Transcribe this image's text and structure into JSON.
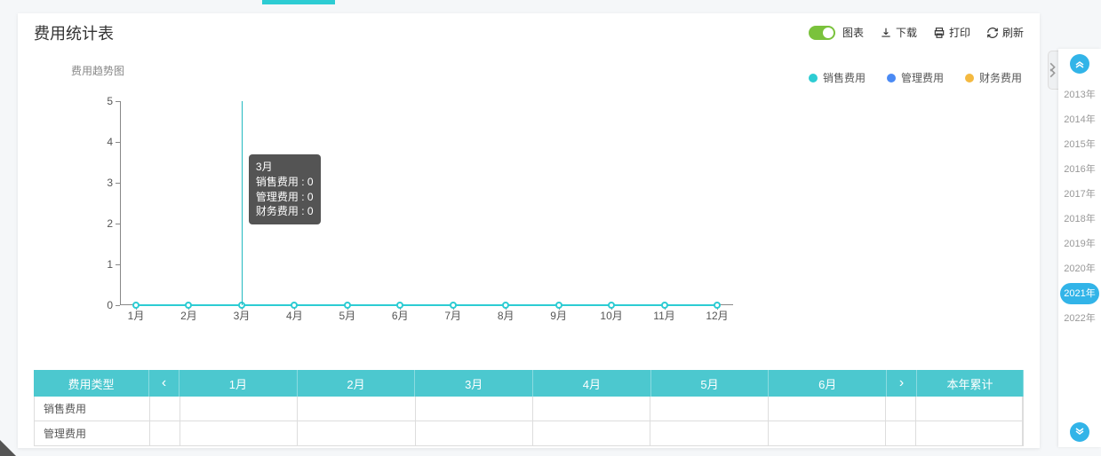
{
  "header": {
    "title": "费用统计表",
    "toggle_label": "图表",
    "download_label": "下载",
    "print_label": "打印",
    "refresh_label": "刷新"
  },
  "chart": {
    "subtitle": "费用趋势图",
    "type": "line",
    "legend": [
      {
        "label": "销售费用",
        "color": "#2dccd3"
      },
      {
        "label": "管理费用",
        "color": "#4a8af4"
      },
      {
        "label": "财务费用",
        "color": "#f4b940"
      }
    ],
    "x_labels": [
      "1月",
      "2月",
      "3月",
      "4月",
      "5月",
      "6月",
      "7月",
      "8月",
      "9月",
      "10月",
      "11月",
      "12月"
    ],
    "y_ticks": [
      0,
      1,
      2,
      3,
      4,
      5
    ],
    "ylim": [
      0,
      5
    ],
    "series": [
      {
        "name": "销售费用",
        "color": "#2dccd3",
        "values": [
          0,
          0,
          0,
          0,
          0,
          0,
          0,
          0,
          0,
          0,
          0,
          0
        ]
      },
      {
        "name": "管理费用",
        "color": "#4a8af4",
        "values": [
          0,
          0,
          0,
          0,
          0,
          0,
          0,
          0,
          0,
          0,
          0,
          0
        ]
      },
      {
        "name": "财务费用",
        "color": "#f4b940",
        "values": [
          0,
          0,
          0,
          0,
          0,
          0,
          0,
          0,
          0,
          0,
          0,
          0
        ]
      }
    ],
    "hover_index": 2,
    "hover_line_color": "#22b9c1",
    "tooltip": {
      "title": "3月",
      "rows": [
        {
          "label": "销售费用",
          "value": "0"
        },
        {
          "label": "管理费用",
          "value": "0"
        },
        {
          "label": "财务费用",
          "value": "0"
        }
      ],
      "bg": "rgba(60,60,60,0.88)"
    },
    "axis_color": "#888888",
    "label_color": "#555555",
    "marker_fill": "#ffffff",
    "plot_bg": "#ffffff"
  },
  "table": {
    "header_bg": "#4cc8cf",
    "row_border": "#dddddd",
    "type_header": "费用类型",
    "month_headers": [
      "1月",
      "2月",
      "3月",
      "4月",
      "5月",
      "6月"
    ],
    "total_header": "本年累计",
    "rows": [
      {
        "label": "销售费用",
        "cells": [
          "",
          "",
          "",
          "",
          "",
          ""
        ],
        "total": ""
      },
      {
        "label": "管理费用",
        "cells": [
          "",
          "",
          "",
          "",
          "",
          ""
        ],
        "total": ""
      }
    ]
  },
  "years": {
    "list": [
      "2013年",
      "2014年",
      "2015年",
      "2016年",
      "2017年",
      "2018年",
      "2019年",
      "2020年",
      "2021年",
      "2022年"
    ],
    "selected": "2021年",
    "selected_bg": "#32b4e8",
    "nav_bg": "#32b4e8"
  },
  "colors": {
    "page_bg": "#f5f7f9",
    "panel_bg": "#ffffff",
    "accent": "#2dccd3",
    "toggle_on": "#7ac23c"
  }
}
